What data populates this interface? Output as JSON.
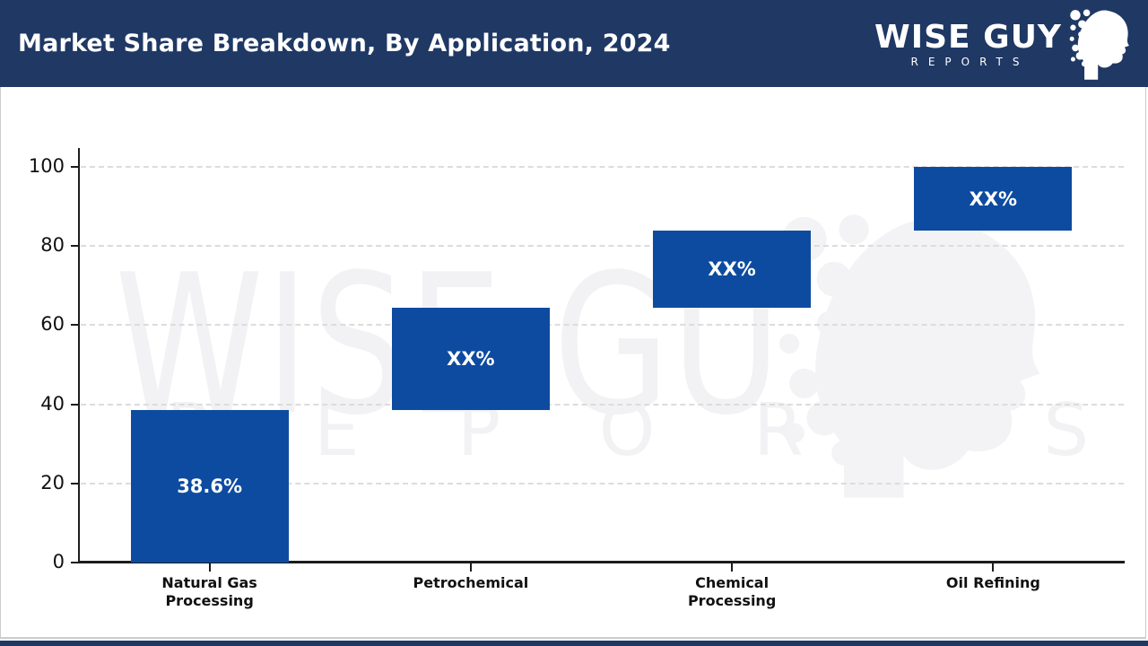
{
  "header": {
    "title": "Market Share Breakdown, By Application, 2024",
    "logo": {
      "line1": "WISE GUY",
      "line2": "REPORTS"
    }
  },
  "watermark": {
    "line1": "WISE GU",
    "line2": "R E P O R T S"
  },
  "colors": {
    "header_bg": "#1f3864",
    "bar_blue": "#0d4ba0",
    "label_white": "#ffffff",
    "grid_gray": "#dcdcdc",
    "watermark_gray": "#f2f2f4"
  },
  "chart_data": {
    "type": "bar",
    "subtype": "floating-waterfall",
    "title": "Market Share Breakdown, By Application, 2024",
    "xlabel": "",
    "ylabel": "",
    "ylim": [
      0,
      105
    ],
    "yticks": [
      0,
      20,
      40,
      60,
      80,
      100
    ],
    "grid": "horizontal-dashed",
    "legend": "none",
    "categories": [
      [
        "Natural Gas",
        "Processing"
      ],
      [
        "Petrochemical"
      ],
      [
        "Chemical",
        "Processing"
      ],
      [
        "Oil Refining"
      ]
    ],
    "segments": [
      {
        "category": "Natural Gas Processing",
        "label": "38.6%",
        "start": 0,
        "end": 38.6
      },
      {
        "category": "Petrochemical",
        "label": "XX%",
        "start": 38.6,
        "end": 64.4
      },
      {
        "category": "Chemical Processing",
        "label": "XX%",
        "start": 64.4,
        "end": 83.8
      },
      {
        "category": "Oil Refining",
        "label": "XX%",
        "start": 83.8,
        "end": 100
      }
    ]
  }
}
